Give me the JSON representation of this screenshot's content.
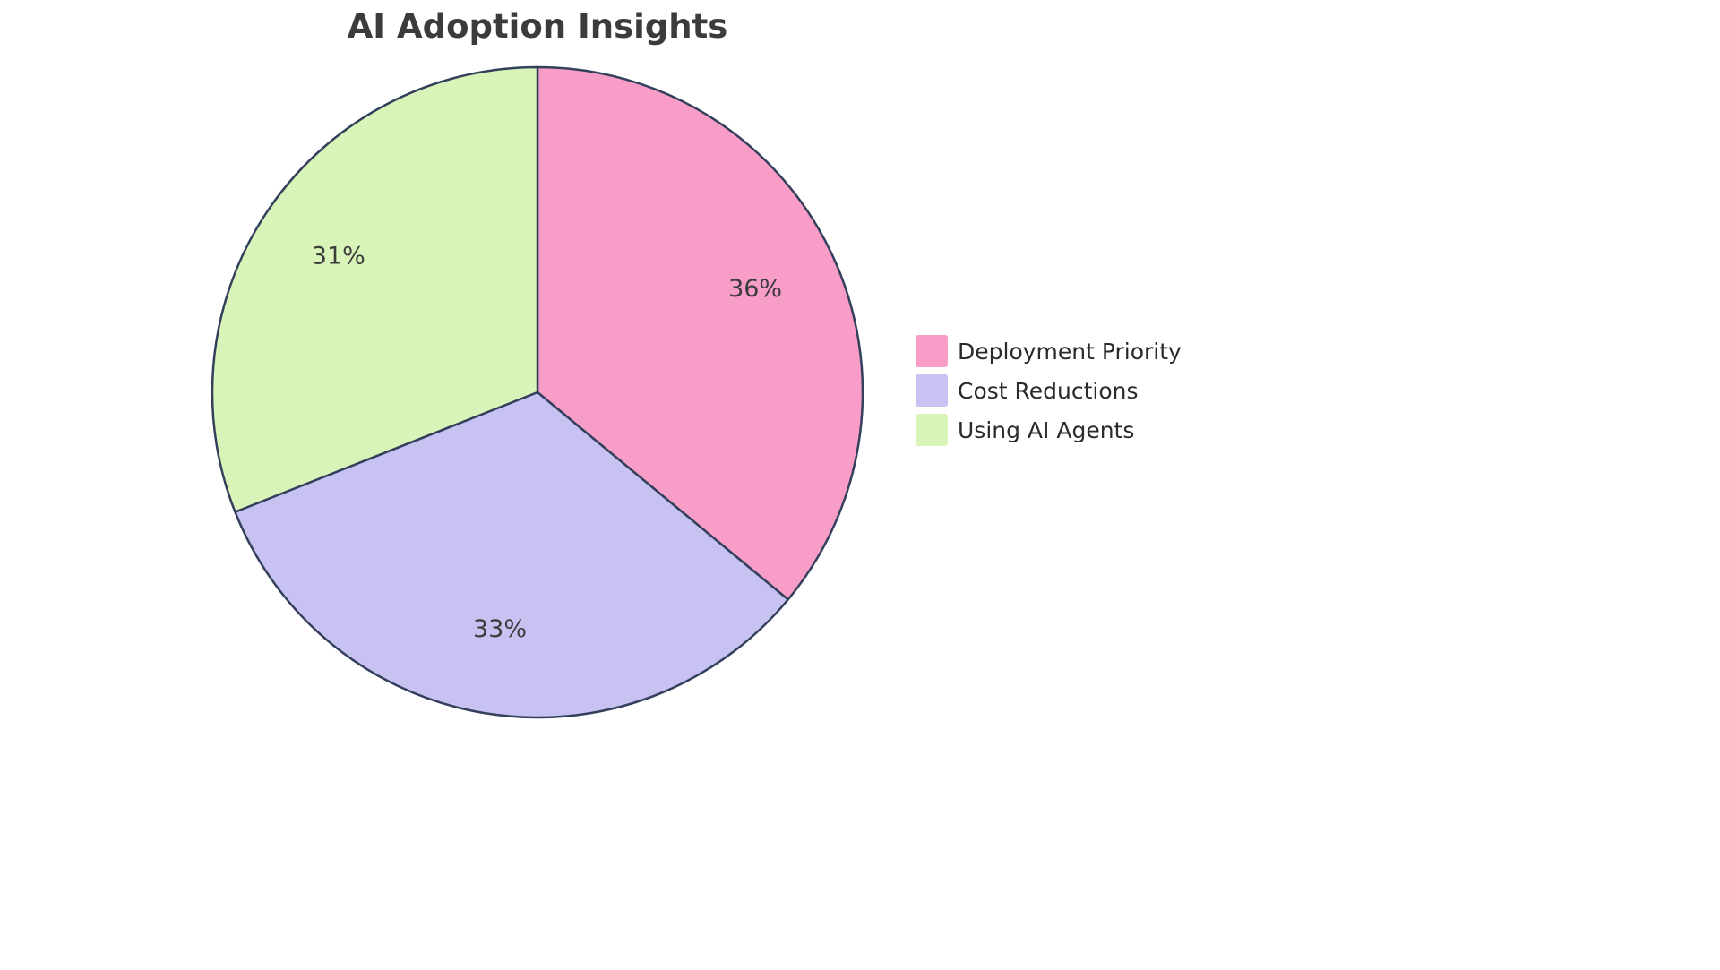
{
  "chart_data": {
    "type": "pie",
    "title": "AI Adoption Insights",
    "categories": [
      "Deployment Priority",
      "Cost Reductions",
      "Using AI Agents"
    ],
    "values": [
      36,
      33,
      31
    ],
    "value_labels": [
      "36%",
      "33%",
      "31%"
    ],
    "colors": [
      "#F89CC8",
      "#C7C2F2",
      "#D9F4B8"
    ],
    "stroke_color": "#33405C",
    "stroke_width": 2.5,
    "start_angle": "top",
    "direction": "clockwise",
    "legend_position": "right",
    "label_color": "#3c3c3c"
  }
}
